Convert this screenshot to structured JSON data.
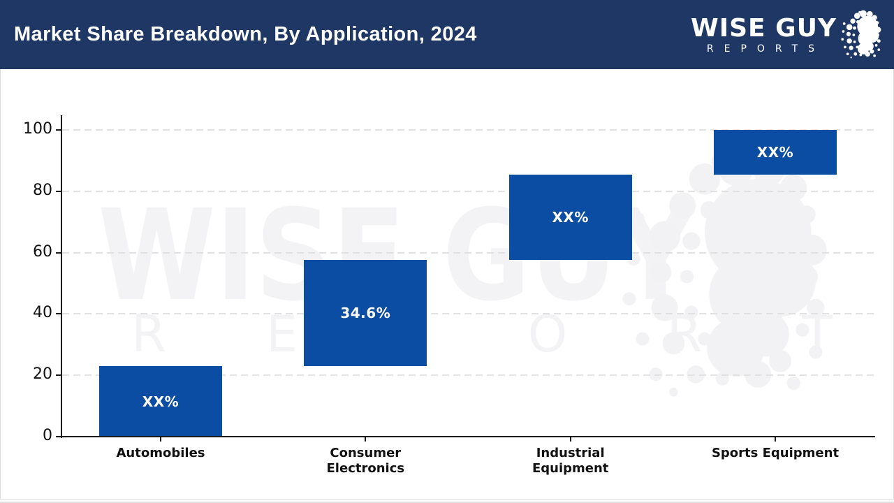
{
  "header": {
    "title": "Market Share Breakdown, By Application, 2024",
    "logo": {
      "brand": "WISE GUY",
      "sub": "REPORTS"
    }
  },
  "watermark": {
    "brand": "WISE GUY",
    "sub": "R E P O R T S"
  },
  "colors": {
    "header_bg": "#1E3765",
    "bar": "#0B4DA2",
    "bar_label": "#FFFFFF",
    "axis": "#1A1A1A",
    "grid": "#E1E1E1",
    "watermark": "#F3F3F5",
    "frame_border": "#D9D9D9"
  },
  "chart_data": {
    "type": "bar",
    "subtype": "floating-waterfall",
    "title": "Market Share Breakdown, By Application, 2024",
    "categories": [
      "Automobiles",
      "Consumer\nElectronics",
      "Industrial\nEquipment",
      "Sports Equipment"
    ],
    "segments": [
      {
        "category": "Automobiles",
        "start": 0,
        "end": 23,
        "label": "XX%"
      },
      {
        "category": "Consumer Electronics",
        "start": 23,
        "end": 57.6,
        "label": "34.6%"
      },
      {
        "category": "Industrial Equipment",
        "start": 57.6,
        "end": 85.4,
        "label": "XX%"
      },
      {
        "category": "Sports Equipment",
        "start": 85.4,
        "end": 100,
        "label": "XX%"
      }
    ],
    "xlabel": "",
    "ylabel": "",
    "ylim": [
      0,
      100
    ],
    "yticks": [
      0,
      20,
      40,
      60,
      80,
      100
    ],
    "ytick_labels": [
      "0",
      "20",
      "40",
      "60",
      "80",
      "100"
    ],
    "grid": "dashed-horizontal",
    "legend": "none",
    "bar_color": "#0B4DA2"
  }
}
